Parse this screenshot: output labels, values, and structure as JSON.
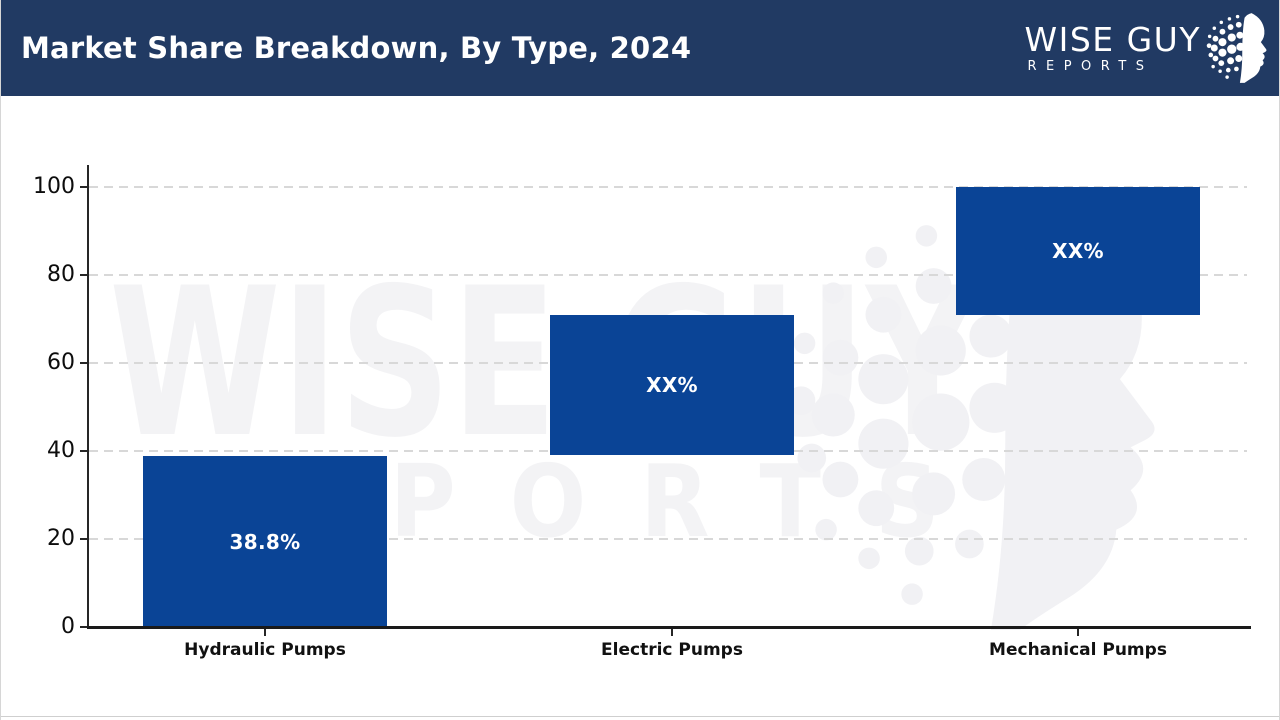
{
  "header": {
    "title": "Market Share Breakdown, By Type, 2024",
    "bg_color": "#213a63",
    "logo": {
      "wordmark": "WISE GUY",
      "subtitle": "REPORTS"
    }
  },
  "watermark": {
    "wordmark": "WISE GUY",
    "subtitle": "REPORTS"
  },
  "chart_data": {
    "type": "bar",
    "subtype": "waterfall",
    "title": "Market Share Breakdown, By Type, 2024",
    "categories": [
      "Hydraulic Pumps",
      "Electric Pumps",
      "Mechanical Pumps"
    ],
    "bars": [
      {
        "category": "Hydraulic Pumps",
        "start": 0,
        "end": 38.8,
        "label": "38.8%"
      },
      {
        "category": "Electric Pumps",
        "start": 39,
        "end": 71,
        "label": "XX%"
      },
      {
        "category": "Mechanical Pumps",
        "start": 71,
        "end": 100,
        "label": "XX%"
      }
    ],
    "yticks": [
      0,
      20,
      40,
      60,
      80,
      100
    ],
    "ylim": [
      0,
      105
    ],
    "xlabel": "",
    "ylabel": "",
    "grid": "horizontal-dashed",
    "legend": "none",
    "bar_color": "#0a4496",
    "bar_label_color": "#ffffff",
    "axis_color": "#1a1a1a",
    "gridline_color": "#d8d8d8"
  }
}
